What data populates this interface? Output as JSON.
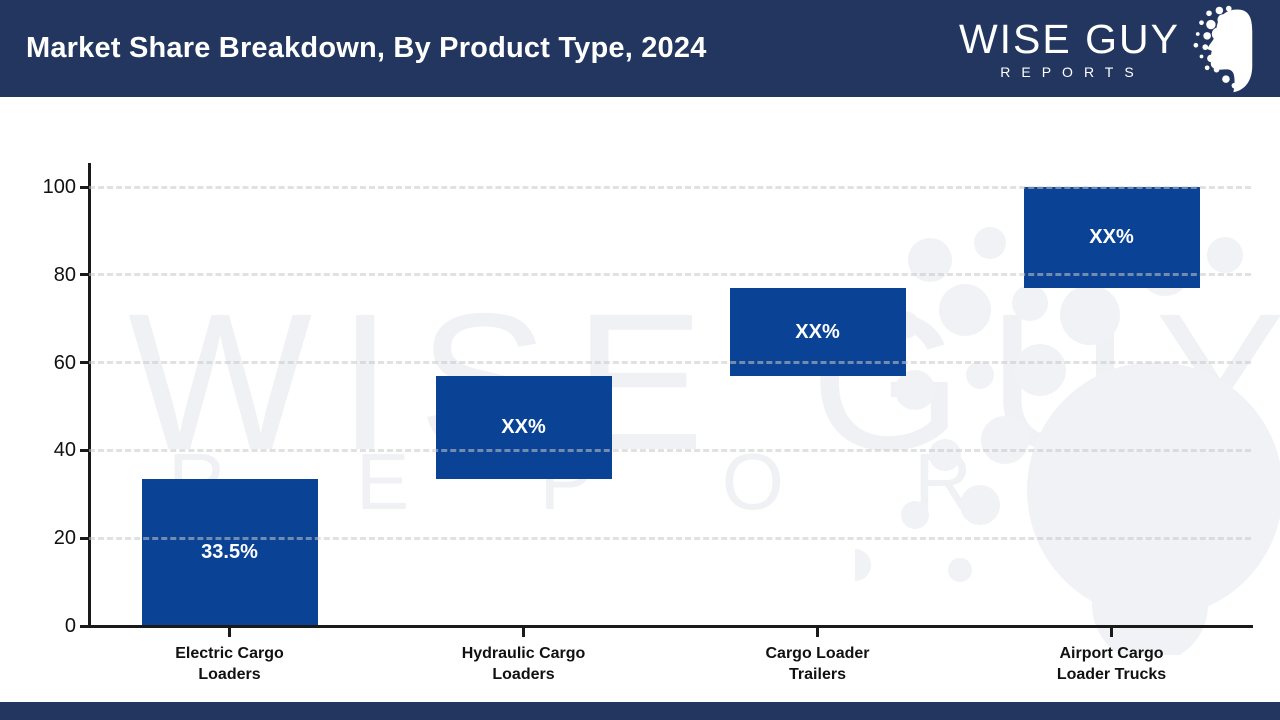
{
  "header": {
    "title": "Market Share Breakdown, By Product Type, 2024",
    "brand_line1": "WISE GUY",
    "brand_line2": "REPORTS"
  },
  "watermark": {
    "line1": "WISE GUY",
    "line2": "R E P O R T S"
  },
  "chart_data": {
    "type": "bar",
    "subtype": "floating-waterfall",
    "title": "Market Share Breakdown, By Product Type, 2024",
    "categories": [
      [
        "Electric Cargo",
        "Loaders"
      ],
      [
        "Hydraulic Cargo",
        "Loaders"
      ],
      [
        "Cargo Loader",
        "Trailers"
      ],
      [
        "Airport Cargo",
        "Loader Trucks"
      ]
    ],
    "segments": [
      {
        "start": 0,
        "end": 33.5,
        "label": "33.5%"
      },
      {
        "start": 33.5,
        "end": 57,
        "label": "XX%"
      },
      {
        "start": 57,
        "end": 77,
        "label": "XX%"
      },
      {
        "start": 77,
        "end": 100,
        "label": "XX%"
      }
    ],
    "yticks": [
      0,
      20,
      40,
      60,
      80,
      100
    ],
    "ylim": [
      0,
      105
    ],
    "xlabel": "",
    "ylabel": "",
    "grid": {
      "horizontal": true,
      "style": "dashed",
      "drawn_over_bars": true
    },
    "legend": "none"
  },
  "colors": {
    "header_navy": "#22365f",
    "footer_navy": "#22365f",
    "bar_blue": "#0a4296",
    "bar_label": "#ffffff",
    "axis": "#1a1a1a",
    "gridline": "#c8c8c8",
    "watermark": "#f0f1f4",
    "background": "#ffffff"
  }
}
